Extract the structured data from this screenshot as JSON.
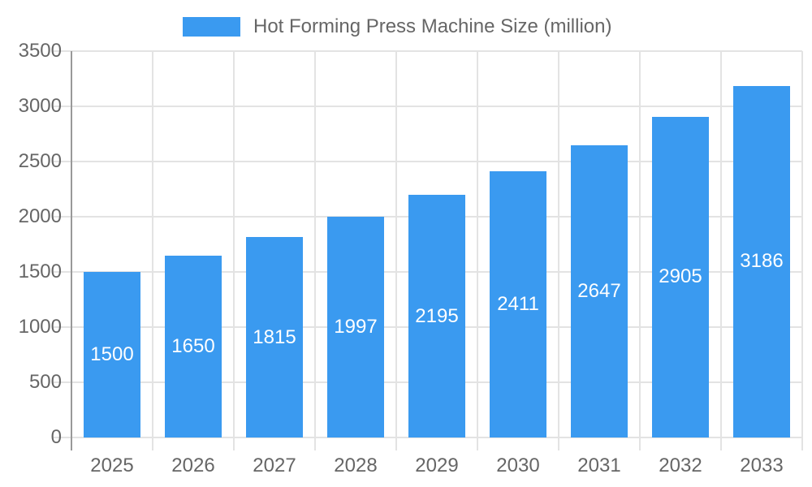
{
  "legend": {
    "label": "Hot Forming Press Machine Size (million)"
  },
  "chart_data": {
    "type": "bar",
    "title": "Hot Forming Press Machine Size (million)",
    "categories": [
      "2025",
      "2026",
      "2027",
      "2028",
      "2029",
      "2030",
      "2031",
      "2032",
      "2033"
    ],
    "values": [
      1500,
      1650,
      1815,
      1997,
      2195,
      2411,
      2647,
      2905,
      3186
    ],
    "xlabel": "",
    "ylabel": "",
    "ylim": [
      0,
      3500
    ],
    "yticks": [
      0,
      500,
      1000,
      1500,
      2000,
      2500,
      3000,
      3500
    ],
    "grid": true,
    "legend_position": "top",
    "bar_color": "#3a9af0",
    "value_label_color": "#ffffff",
    "axis_text_color": "#666666",
    "gridline_color": "#e3e3e3",
    "axis_line_color": "#999999"
  }
}
